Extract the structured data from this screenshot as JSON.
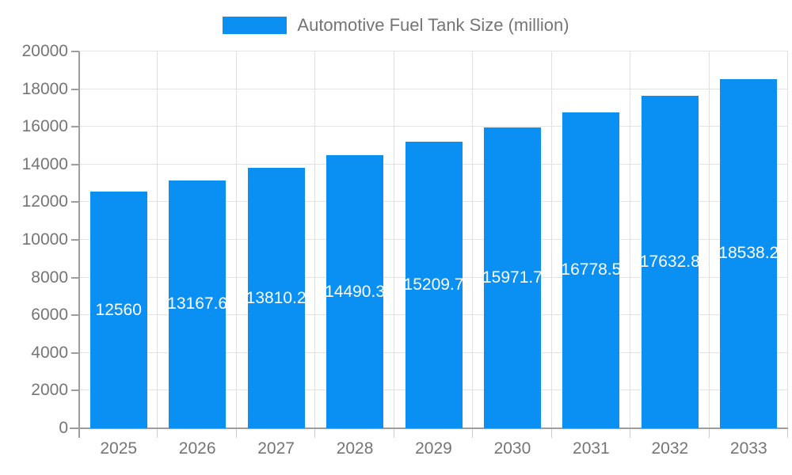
{
  "legend": {
    "label": "Automotive Fuel Tank Size (million)"
  },
  "chart_data": {
    "type": "bar",
    "title": "",
    "categories": [
      "2025",
      "2026",
      "2027",
      "2028",
      "2029",
      "2030",
      "2031",
      "2032",
      "2033"
    ],
    "series": [
      {
        "name": "Automotive Fuel Tank Size (million)",
        "values": [
          12560,
          13167.6,
          13810.2,
          14490.3,
          15209.7,
          15971.7,
          16778.5,
          17632.8,
          18538.2
        ]
      }
    ],
    "xlabel": "",
    "ylabel": "",
    "ylim": [
      0,
      20000
    ],
    "ytick_step": 2000,
    "yticks": [
      0,
      2000,
      4000,
      6000,
      8000,
      10000,
      12000,
      14000,
      16000,
      18000,
      20000
    ],
    "grid": "on",
    "legend_position": "top",
    "bar_color": "#0a8ff2",
    "bar_label_color": "#ffffff",
    "axis_color": "#9e9e9e",
    "gridline_color": "#e3e3e3",
    "text_color": "#757575"
  }
}
